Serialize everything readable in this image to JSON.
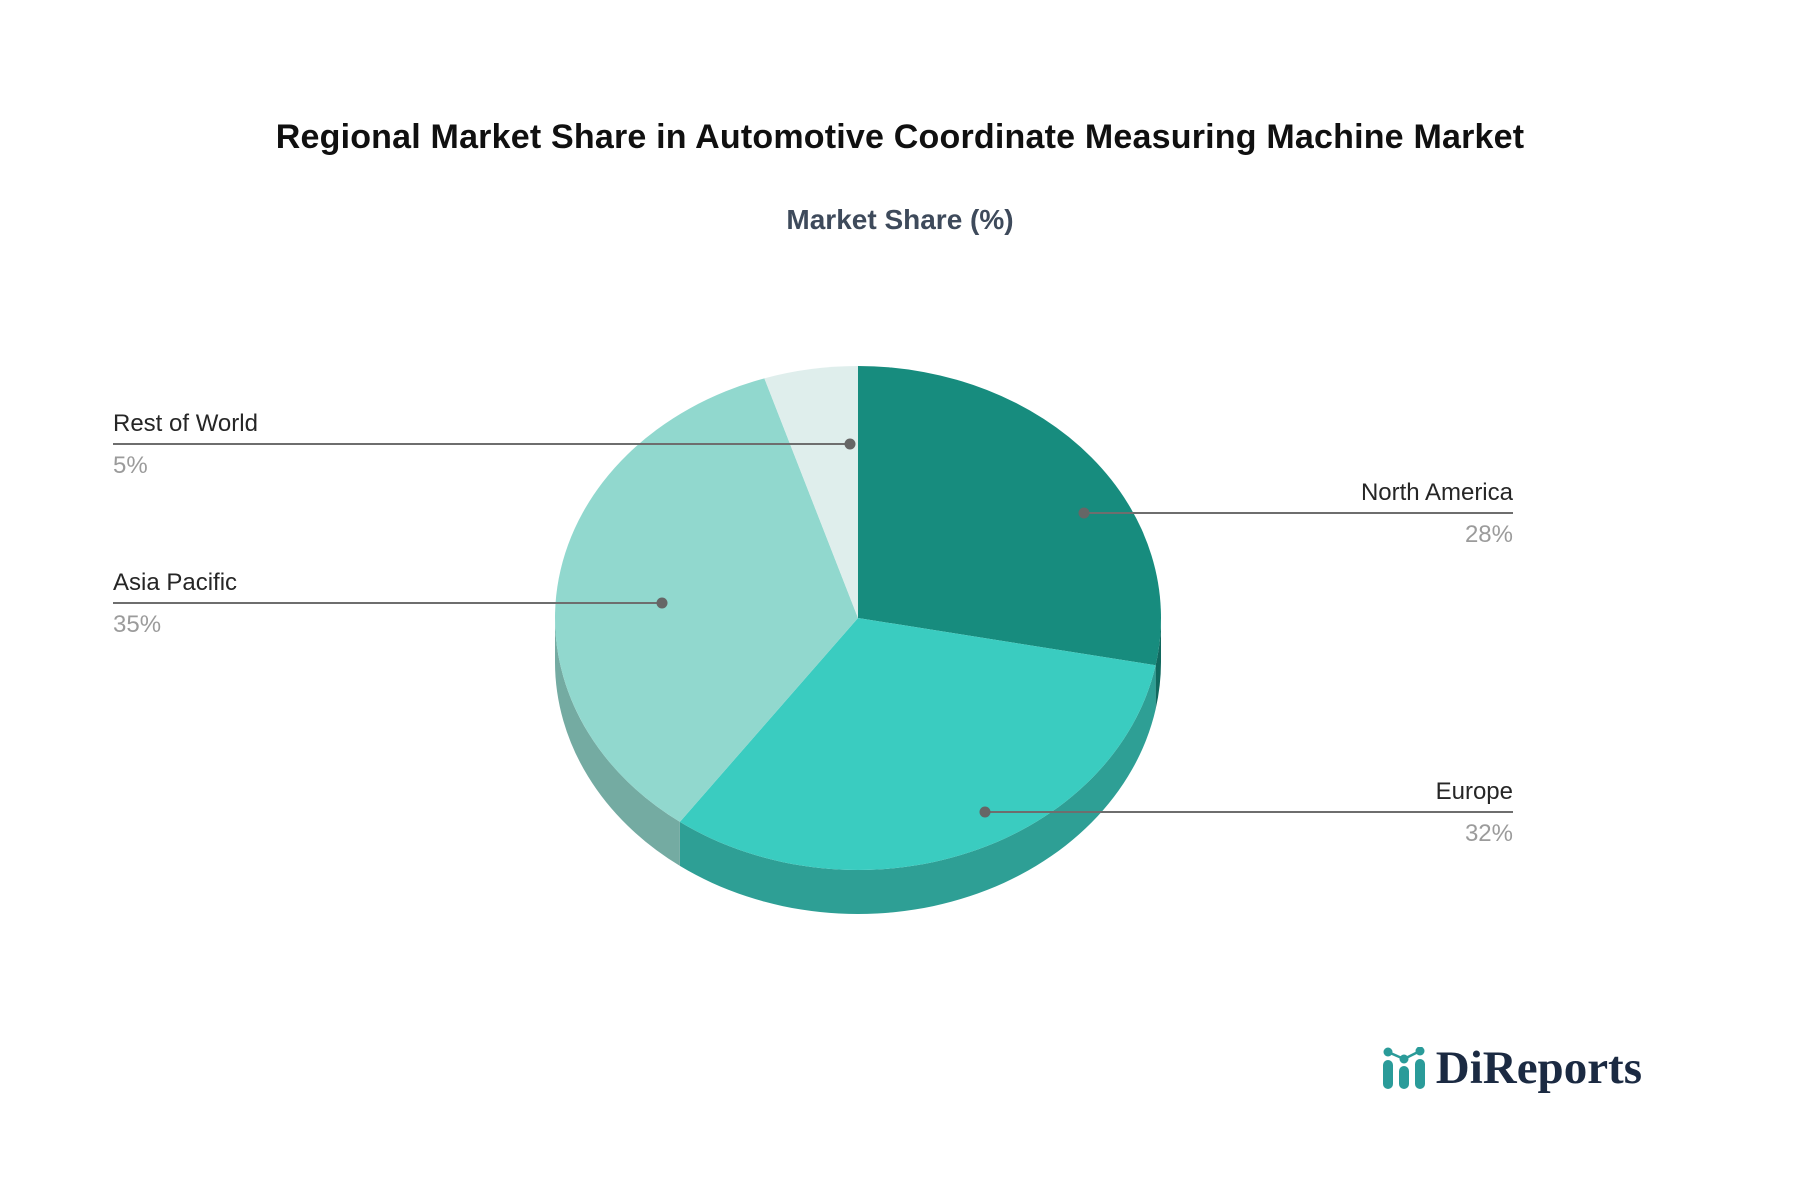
{
  "page": {
    "background": "#FFFFFF"
  },
  "chart_data": {
    "type": "pie",
    "style": "3d",
    "title": "Regional Market Share in Automotive Coordinate Measuring Machine Market",
    "subtitle": "Market Share (%)",
    "value_unit": "%",
    "start_angle_deg": -90,
    "direction": "clockwise",
    "legend_position": "none",
    "slices": [
      {
        "label": "North America",
        "value": 28,
        "display_value": "28%",
        "color": "#178C7E",
        "side_color": "#11695F",
        "label_side": "right"
      },
      {
        "label": "Europe",
        "value": 32,
        "display_value": "32%",
        "color": "#3ACCC0",
        "side_color": "#2E9F95",
        "label_side": "right"
      },
      {
        "label": "Asia Pacific",
        "value": 35,
        "display_value": "35%",
        "color": "#91D8CE",
        "side_color": "#74ABA2",
        "label_side": "left"
      },
      {
        "label": "Rest of World",
        "value": 5,
        "display_value": "5%",
        "color": "#DFEEEC",
        "side_color": "#B5C9C6",
        "label_side": "left"
      }
    ],
    "label_text_color": "#262626",
    "value_text_color": "#9B9B9B",
    "leader_line_color": "#6E6E6E",
    "leader_dot_color": "#666666"
  },
  "branding": {
    "logo_text": "DiReports",
    "logo_text_color": "#1B2A42",
    "logo_icon": "bar-chart-with-trend-dots-icon",
    "logo_icon_color": "#2A9B99"
  }
}
